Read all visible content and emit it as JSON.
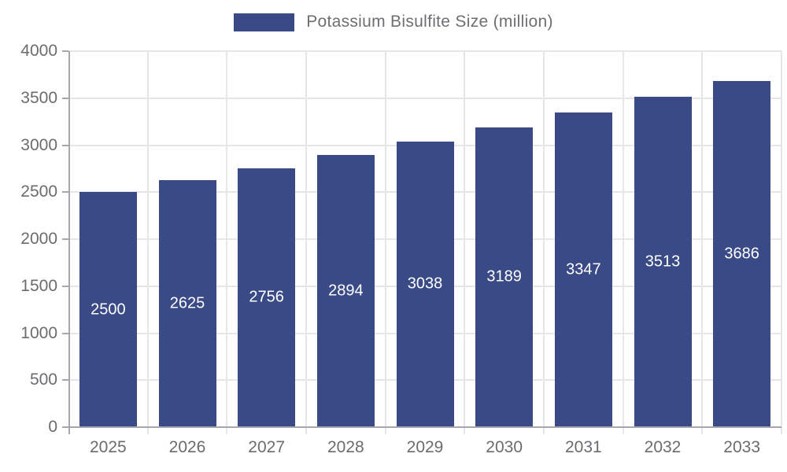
{
  "chart_data": {
    "type": "bar",
    "title": "",
    "legend": "Potassium Bisulfite Size (million)",
    "legend_position": "top-center",
    "categories": [
      "2025",
      "2026",
      "2027",
      "2028",
      "2029",
      "2030",
      "2031",
      "2032",
      "2033"
    ],
    "values": [
      2500,
      2625,
      2756,
      2894,
      3038,
      3189,
      3347,
      3513,
      3686
    ],
    "bar_labels": [
      "2500",
      "2625",
      "2756",
      "2894",
      "3038",
      "3189",
      "3347",
      "3513",
      "3686"
    ],
    "xlabel": "",
    "ylabel": "",
    "ylim": [
      0,
      4000
    ],
    "yticks": [
      0,
      500,
      1000,
      1500,
      2000,
      2500,
      3000,
      3500,
      4000
    ],
    "grid": true,
    "colors": {
      "bar": "#3a4a87",
      "grid": "#e6e6e9",
      "axis": "#a6a6ad",
      "tick_label": "#6b6b70",
      "legend_text": "#6e6e74",
      "bar_label": "#ffffff",
      "background": "#ffffff"
    }
  }
}
